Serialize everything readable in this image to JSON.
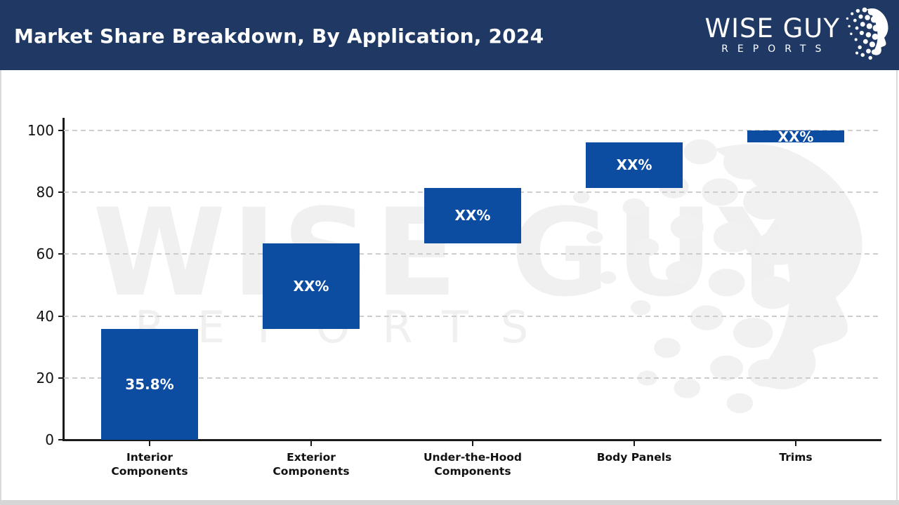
{
  "header": {
    "title": "Market Share Breakdown, By Application, 2024",
    "background_color": "#1f3864"
  },
  "logo": {
    "line1": "WISE GUY",
    "line2": "REPORTS",
    "icon": "dotted-head-icon"
  },
  "watermark": {
    "line1": "WISE GUY",
    "line2": "REPORTS"
  },
  "chart_data": {
    "type": "bar",
    "subtype": "waterfall",
    "title": "Market Share Breakdown, By Application, 2024",
    "categories": [
      "Interior\nComponents",
      "Exterior\nComponents",
      "Under-the-Hood\nComponents",
      "Body Panels",
      "Trims"
    ],
    "series": [
      {
        "name": "Market share (%)",
        "segments": [
          {
            "category": "Interior Components",
            "start": 0,
            "end": 35.8,
            "label": "35.8%"
          },
          {
            "category": "Exterior Components",
            "start": 35.8,
            "end": 63.5,
            "label": "XX%"
          },
          {
            "category": "Under-the-Hood Components",
            "start": 63.5,
            "end": 81.5,
            "label": "XX%"
          },
          {
            "category": "Body Panels",
            "start": 81.5,
            "end": 96.1,
            "label": "XX%"
          },
          {
            "category": "Trims",
            "start": 96.1,
            "end": 100,
            "label": "XX%"
          }
        ]
      }
    ],
    "xlabel": "",
    "ylabel": "",
    "ylim": [
      0,
      104
    ],
    "yticks": [
      0,
      20,
      40,
      60,
      80,
      100
    ],
    "grid": "horizontal dashed",
    "legend": "none",
    "bar_color": "#0c4da2",
    "bar_label_color": "#ffffff",
    "axis_color": "#1a1a1a"
  }
}
